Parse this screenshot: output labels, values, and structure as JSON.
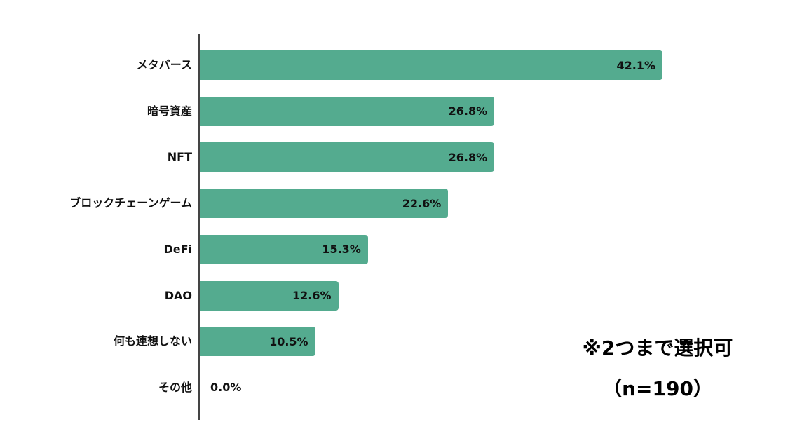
{
  "chart_data": {
    "type": "bar",
    "orientation": "horizontal",
    "title": "",
    "xlabel": "",
    "ylabel": "",
    "categories": [
      "メタバース",
      "暗号資産",
      "NFT",
      "ブロックチェーンゲーム",
      "DeFi",
      "DAO",
      "何も連想しない",
      "その他"
    ],
    "values": [
      42.1,
      26.8,
      26.8,
      22.6,
      15.3,
      12.6,
      10.5,
      0.0
    ],
    "value_labels": [
      "42.1%",
      "26.8%",
      "26.8%",
      "22.6%",
      "15.3%",
      "12.6%",
      "10.5%",
      "0.0%"
    ],
    "xlim": [
      0,
      42.1
    ],
    "grid": false,
    "legend": null,
    "bar_color": "#54ab8f",
    "axis_color": "#444444",
    "text_color": "#111111"
  },
  "annotation": {
    "line1": "※2つまで選択可",
    "line2": "（n=190）"
  }
}
